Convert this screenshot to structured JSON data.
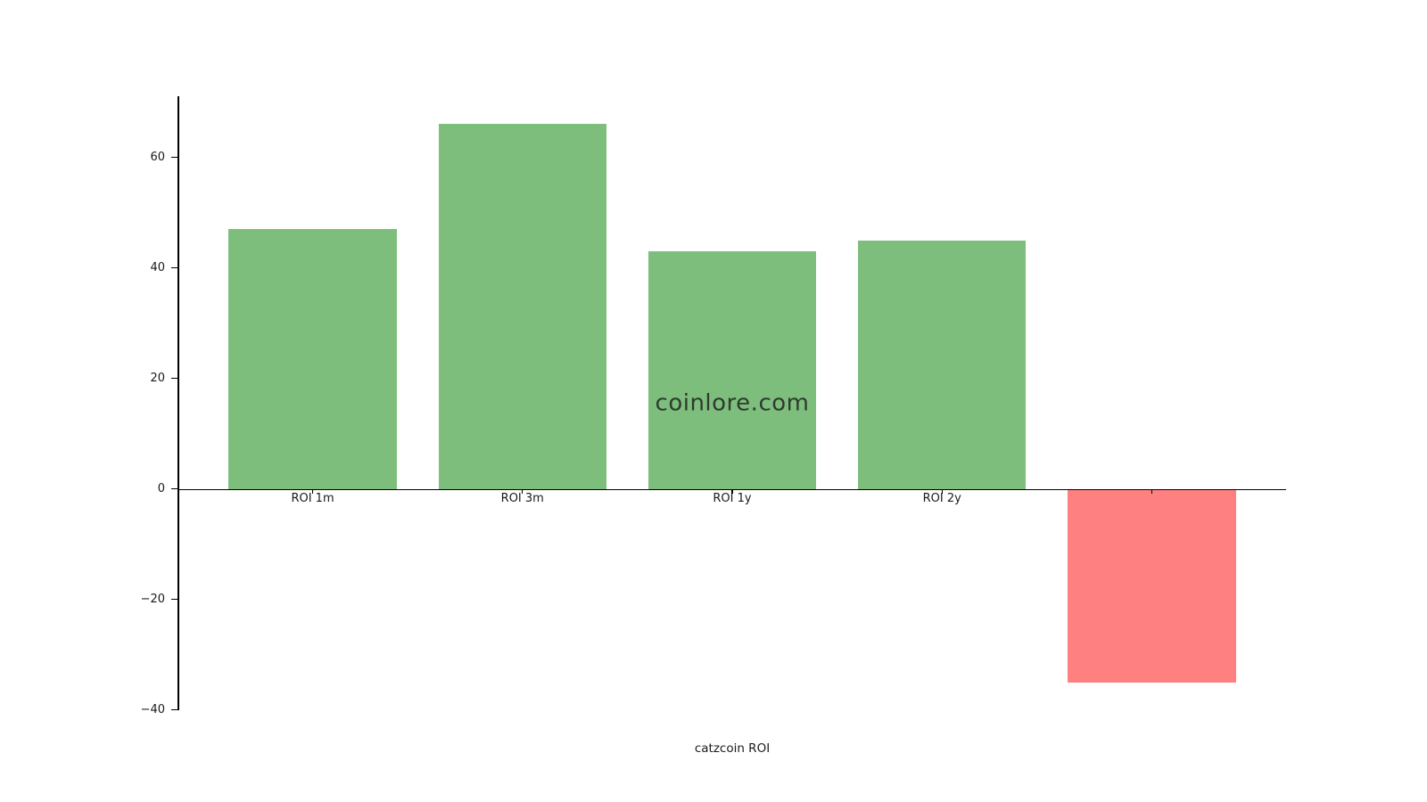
{
  "chart_data": {
    "type": "bar",
    "title": "",
    "xlabel": "catzcoin ROI",
    "ylabel": "",
    "categories": [
      "ROI 1m",
      "ROI 3m",
      "ROI 1y",
      "ROI 2y",
      ""
    ],
    "values": [
      47,
      66,
      43,
      45,
      -35
    ],
    "series_name": "catzcoin ROI %",
    "positive_color": "#7dbe7d",
    "negative_color": "#ff8080",
    "axis_color": "#000000",
    "text_color": "#1a1a1a",
    "watermark": "coinlore.com",
    "watermark_color": "#2e3b2e",
    "ylim": [
      -40.05,
      71.05
    ],
    "yticks": [
      {
        "value": 60,
        "label": "60"
      },
      {
        "value": 40,
        "label": "40"
      },
      {
        "value": 20,
        "label": "20"
      },
      {
        "value": 0,
        "label": "0"
      },
      {
        "value": -20,
        "label": "−20"
      },
      {
        "value": -40,
        "label": "−40"
      }
    ],
    "bar_width_ratio": 0.8,
    "x_edge_padding": 0.64,
    "grid": false,
    "legend": false,
    "baseline": 0
  }
}
